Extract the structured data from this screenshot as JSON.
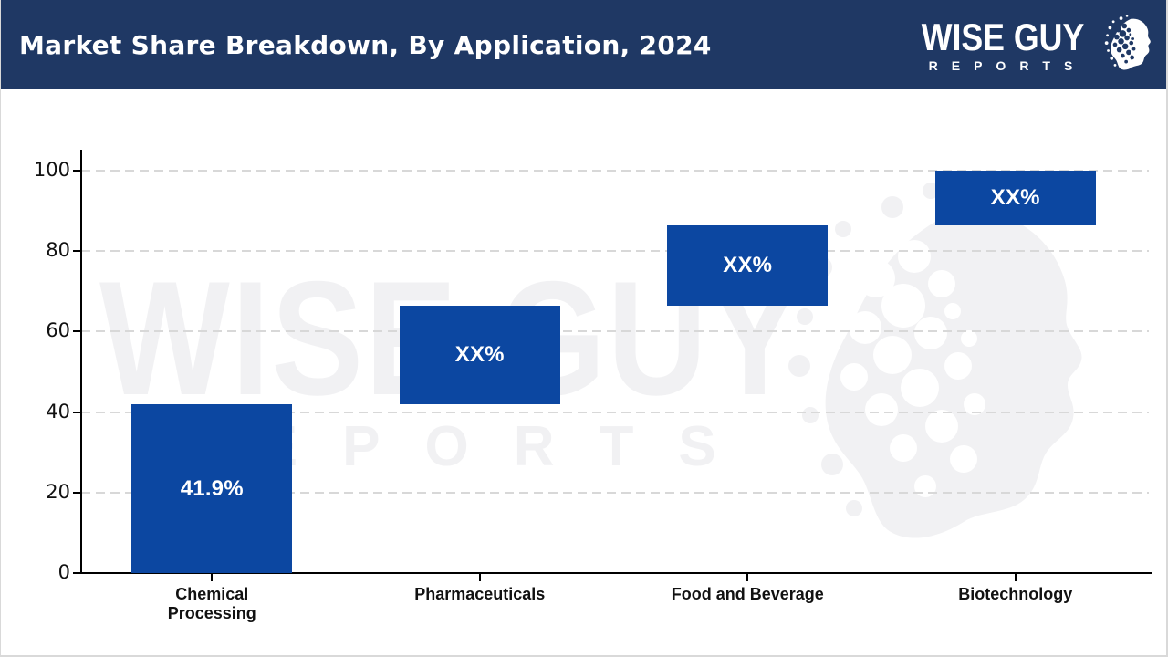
{
  "header": {
    "title": "Market Share Breakdown, By Application, 2024",
    "logo": {
      "line1": "WISE GUY",
      "line2": "REPORTS"
    }
  },
  "watermark": {
    "line1": "WISE GUY",
    "line2": "REPORTS"
  },
  "colors": {
    "header_bg": "#1f3864",
    "bar": "#0c47a1",
    "bar_label": "#ffffff",
    "grid": "#d8d8d8",
    "axis": "#000000",
    "tick_label": "#111111",
    "watermark": "#f1f1f3",
    "page_border": "#d9d9d9"
  },
  "chart_data": {
    "type": "bar",
    "subtype": "waterfall-cumulative",
    "title": "Market Share Breakdown, By Application, 2024",
    "categories": [
      "Chemical Processing",
      "Pharmaceuticals",
      "Food and Beverage",
      "Biotechnology"
    ],
    "xtick_labels": [
      "Chemical\nProcessing",
      "Pharmaceuticals",
      "Food and Beverage",
      "Biotechnology"
    ],
    "segments": [
      {
        "category": "Chemical Processing",
        "start": 0,
        "end": 41.9,
        "label": "41.9%"
      },
      {
        "category": "Pharmaceuticals",
        "start": 41.9,
        "end": 66.5,
        "label": "XX%"
      },
      {
        "category": "Food and Beverage",
        "start": 66.5,
        "end": 86.4,
        "label": "XX%"
      },
      {
        "category": "Biotechnology",
        "start": 86.4,
        "end": 100,
        "label": "XX%"
      }
    ],
    "ylabel": "",
    "xlabel": "",
    "yticks": [
      0,
      20,
      40,
      60,
      80,
      100
    ],
    "ylim": [
      0,
      105
    ],
    "grid": "horizontal-dashed",
    "legend": "none"
  }
}
